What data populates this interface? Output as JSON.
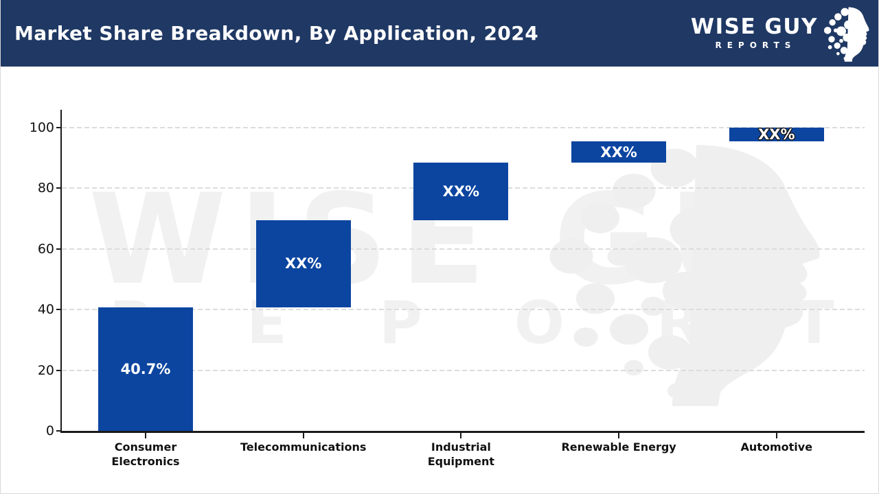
{
  "header": {
    "title": "Market Share Breakdown, By Application, 2024",
    "bg_color": "#1f3864",
    "logo": {
      "name_line": "WISE GUY",
      "sub_line": "REPORTS"
    }
  },
  "watermark": {
    "name_line": "WISE GU",
    "sub_line": "R E P O R T S"
  },
  "colors": {
    "header_bg": "#1f3864",
    "bar": "#0c45a0",
    "grid": "#dcdcdc",
    "axis": "#1a1a1a",
    "tick_text": "#111111",
    "bar_label_text": "#ffffff",
    "watermark": "#f1f1f1"
  },
  "chart_data": {
    "type": "bar",
    "subtype": "waterfall",
    "title": "Market Share Breakdown, By Application, 2024",
    "xlabel": "",
    "ylabel": "",
    "ylim": [
      0,
      106
    ],
    "yticks": [
      0,
      20,
      40,
      60,
      80,
      100
    ],
    "grid": "horizontal-dashed",
    "legend": "none",
    "bar_color": "#0c45a0",
    "categories": [
      "Consumer Electronics",
      "Telecommunications",
      "Industrial Equipment",
      "Renewable Energy",
      "Automotive"
    ],
    "series": [
      {
        "category_lines": [
          "Consumer",
          "Electronics"
        ],
        "start": 0,
        "end": 40.7,
        "label": "40.7%"
      },
      {
        "category_lines": [
          "Telecommunications"
        ],
        "start": 40.7,
        "end": 69.5,
        "label": "XX%"
      },
      {
        "category_lines": [
          "Industrial",
          "Equipment"
        ],
        "start": 69.5,
        "end": 88.4,
        "label": "XX%"
      },
      {
        "category_lines": [
          "Renewable Energy"
        ],
        "start": 88.4,
        "end": 95.5,
        "label": "XX%"
      },
      {
        "category_lines": [
          "Automotive"
        ],
        "start": 95.5,
        "end": 100,
        "label": "XX%"
      }
    ]
  }
}
